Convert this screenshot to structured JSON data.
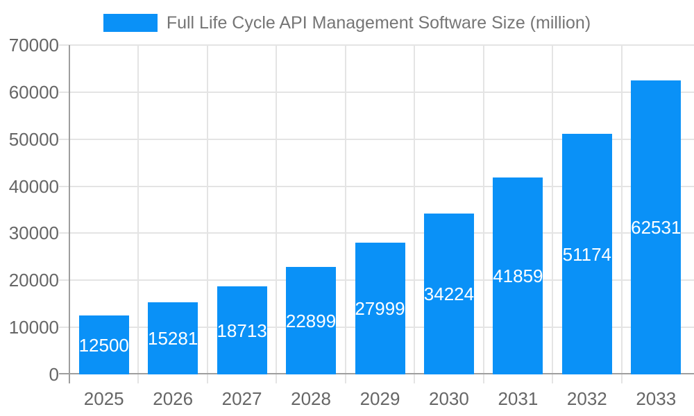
{
  "chart_data": {
    "type": "bar",
    "title": "Full Life Cycle API Management Software Size (million)",
    "legend": {
      "position": "top",
      "label": "Full Life Cycle API Management Software Size (million)"
    },
    "categories": [
      "2025",
      "2026",
      "2027",
      "2028",
      "2029",
      "2030",
      "2031",
      "2032",
      "2033"
    ],
    "series": [
      {
        "name": "Full Life Cycle API Management Software Size (million)",
        "values": [
          12500,
          15281,
          18713,
          22899,
          27999,
          34224,
          41859,
          51174,
          62531
        ]
      }
    ],
    "xlabel": "",
    "ylabel": "",
    "ylim": [
      0,
      70000
    ],
    "yticks": [
      0,
      10000,
      20000,
      30000,
      40000,
      50000,
      60000,
      70000
    ],
    "grid": true,
    "value_labels": "inside-center",
    "colors": {
      "bar": "#0a91f7",
      "axis_line": "#9e9e9e",
      "gridline": "#e4e4e4",
      "tick_label": "#666666",
      "legend_text": "#757575",
      "value_label": "#ffffff",
      "background": "#ffffff"
    }
  }
}
